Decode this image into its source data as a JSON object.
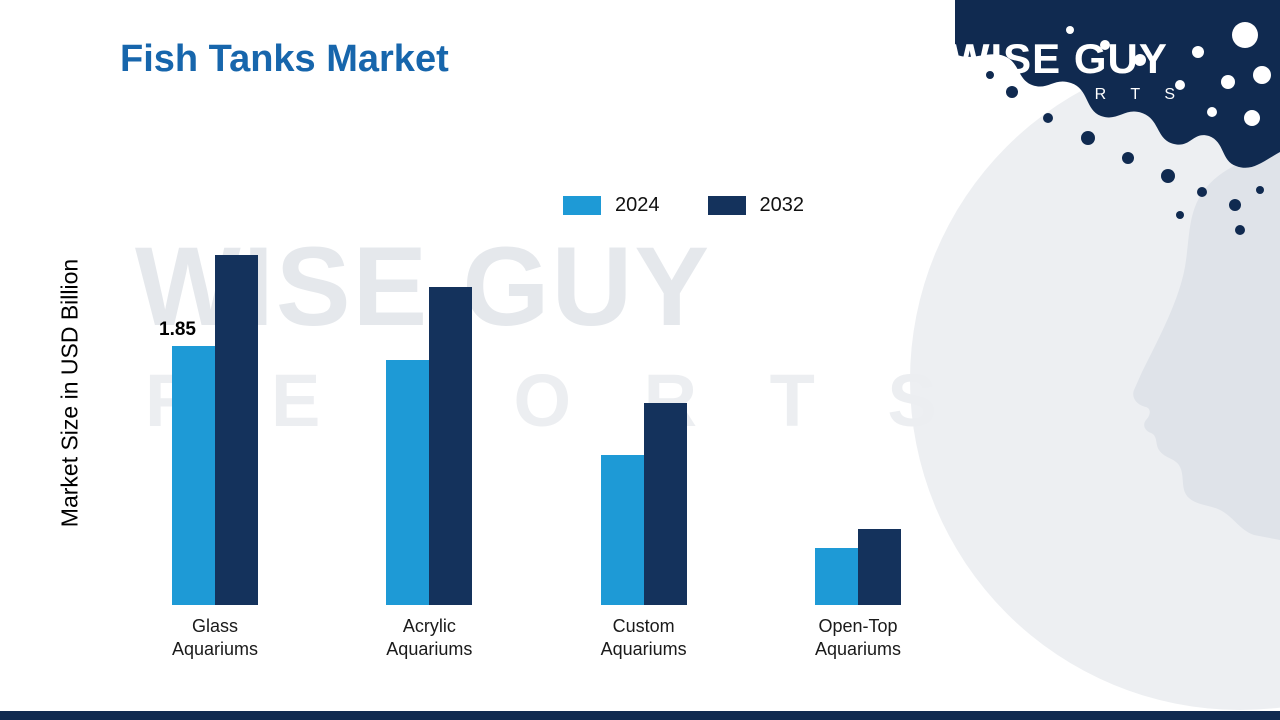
{
  "branding": {
    "logo_line1": "WISE GUY",
    "logo_line2": "R E P O R T S",
    "watermark_line1": "WISE GUY",
    "watermark_line2": "R E P O R T S",
    "navy": "#102a50",
    "accent": "#1766ac"
  },
  "chart_data": {
    "type": "bar",
    "title": "Fish Tanks Market",
    "xlabel": "",
    "ylabel": "Market Size in USD Billion",
    "categories": [
      "Glass\nAquariums",
      "Acrylic\nAquariums",
      "Custom\nAquariums",
      "Open-Top\nAquariums"
    ],
    "series": [
      {
        "name": "2024",
        "color": "#1e9ad6",
        "values": [
          1.85,
          1.75,
          1.07,
          0.41
        ]
      },
      {
        "name": "2032",
        "color": "#14325c",
        "values": [
          2.5,
          2.27,
          1.44,
          0.54
        ]
      }
    ],
    "ylim": [
      0,
      2.8
    ],
    "grid": false,
    "legend_position": "top",
    "annotations": [
      {
        "series": 0,
        "category": 0,
        "text": "1.85"
      }
    ]
  }
}
